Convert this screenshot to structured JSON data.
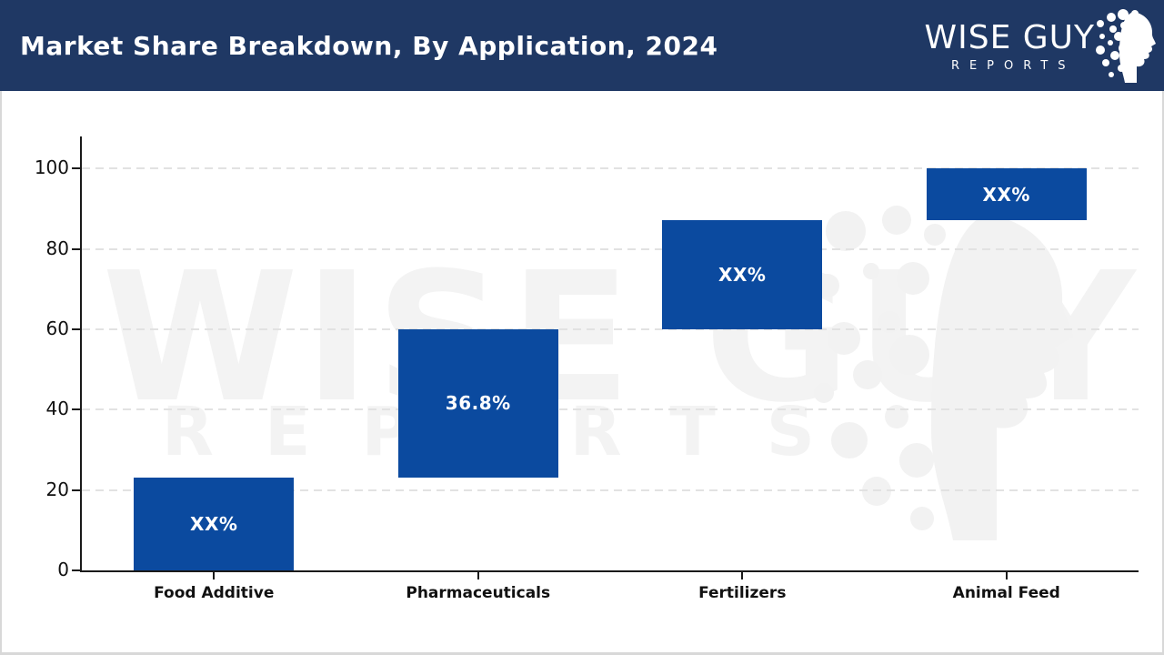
{
  "header": {
    "title": "Market Share Breakdown, By Application, 2024",
    "bg_color": "#1f3864",
    "text_color": "#ffffff"
  },
  "logo": {
    "line1": "WISE GUY",
    "line2": "REPORTS"
  },
  "watermark": {
    "line1": "WISE GUY",
    "line2": "REPORTS"
  },
  "chart_data": {
    "type": "bar",
    "subtype": "floating-segment-waterfall",
    "title": "Market Share Breakdown, By Application, 2024",
    "categories": [
      "Food Additive",
      "Pharmaceuticals",
      "Fertilizers",
      "Animal Feed"
    ],
    "segments": [
      {
        "category": "Food Additive",
        "start": 0,
        "end": 23.2,
        "label": "XX%"
      },
      {
        "category": "Pharmaceuticals",
        "start": 23.2,
        "end": 60,
        "label": "36.8%"
      },
      {
        "category": "Fertilizers",
        "start": 60,
        "end": 87.2,
        "label": "XX%"
      },
      {
        "category": "Animal Feed",
        "start": 87.2,
        "end": 100,
        "label": "XX%"
      }
    ],
    "xlabel": "",
    "ylabel": "",
    "ylim": [
      0,
      108
    ],
    "yticks": [
      0,
      20,
      40,
      60,
      80,
      100
    ],
    "grid": "dashed-horizontal",
    "legend": "none",
    "colors": {
      "bar": "#0b4a9f",
      "bar_label": "#ffffff",
      "grid": "#e2e2e2",
      "axis": "#1a1a1a",
      "header_bg": "#1f3864",
      "watermark": "#f3f3f3"
    }
  }
}
